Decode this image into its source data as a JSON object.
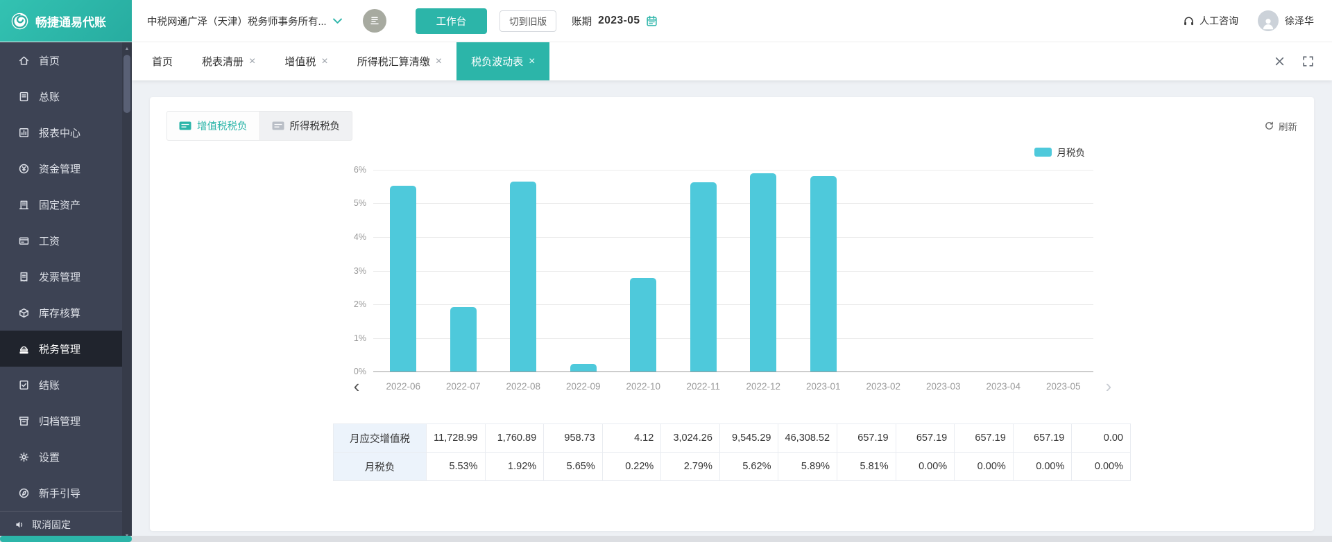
{
  "brand": {
    "name": "畅捷通易代账"
  },
  "colors": {
    "accent": "#2cb5a9",
    "bar": "#4ec9db",
    "sidebar": "#3d4354",
    "sidebar_active": "#20242d"
  },
  "topbar": {
    "company_selector": "中税网通广泽（天津）税务师事务所有...",
    "workbench_button": "工作台",
    "switch_old_button": "切到旧版",
    "period_label": "账期",
    "period_value": "2023-05",
    "support_label": "人工咨询",
    "user_name": "徐泽华"
  },
  "sidebar": {
    "items": [
      {
        "label": "首页",
        "icon": "home",
        "active": false
      },
      {
        "label": "总账",
        "icon": "ledger",
        "active": false
      },
      {
        "label": "报表中心",
        "icon": "report",
        "active": false
      },
      {
        "label": "资金管理",
        "icon": "funds",
        "active": false
      },
      {
        "label": "固定资产",
        "icon": "assets",
        "active": false
      },
      {
        "label": "工资",
        "icon": "salary",
        "active": false
      },
      {
        "label": "发票管理",
        "icon": "invoice",
        "active": false
      },
      {
        "label": "库存核算",
        "icon": "inventory",
        "active": false
      },
      {
        "label": "税务管理",
        "icon": "tax",
        "active": true
      },
      {
        "label": "结账",
        "icon": "closing",
        "active": false
      },
      {
        "label": "归档管理",
        "icon": "archive",
        "active": false
      },
      {
        "label": "设置",
        "icon": "settings",
        "active": false
      },
      {
        "label": "新手引导",
        "icon": "guide",
        "active": false
      }
    ],
    "unpin_label": "取消固定"
  },
  "tabs": [
    {
      "label": "首页",
      "closable": false,
      "active": false
    },
    {
      "label": "税表清册",
      "closable": true,
      "active": false
    },
    {
      "label": "增值税",
      "closable": true,
      "active": false
    },
    {
      "label": "所得税汇算清缴",
      "closable": true,
      "active": false
    },
    {
      "label": "税负波动表",
      "closable": true,
      "active": true
    }
  ],
  "panel": {
    "toggle_tabs": [
      {
        "label": "增值税税负",
        "active": true
      },
      {
        "label": "所得税税负",
        "active": false
      }
    ],
    "refresh_label": "刷新"
  },
  "chart_data": {
    "type": "bar",
    "title": "",
    "categories": [
      "2022-06",
      "2022-07",
      "2022-08",
      "2022-09",
      "2022-10",
      "2022-11",
      "2022-12",
      "2023-01",
      "2023-02",
      "2023-03",
      "2023-04",
      "2023-05"
    ],
    "series": [
      {
        "name": "月税负",
        "values": [
          5.53,
          1.92,
          5.65,
          0.22,
          2.79,
          5.62,
          5.89,
          5.81,
          0.0,
          0.0,
          0.0,
          0.0
        ]
      }
    ],
    "y_ticks": [
      "0%",
      "1%",
      "2%",
      "3%",
      "4%",
      "5%",
      "6%"
    ],
    "ylim": [
      0,
      6
    ],
    "unit": "%",
    "legend": [
      "月税负"
    ],
    "legend_position": "top-right",
    "grid": true,
    "bar_color": "#4ec9db"
  },
  "table": {
    "rows": [
      {
        "header": "月应交增值税",
        "values": [
          "11,728.99",
          "1,760.89",
          "958.73",
          "4.12",
          "3,024.26",
          "9,545.29",
          "46,308.52",
          "657.19",
          "657.19",
          "657.19",
          "657.19",
          "0.00"
        ]
      },
      {
        "header": "月税负",
        "values": [
          "5.53%",
          "1.92%",
          "5.65%",
          "0.22%",
          "2.79%",
          "5.62%",
          "5.89%",
          "5.81%",
          "0.00%",
          "0.00%",
          "0.00%",
          "0.00%"
        ]
      }
    ]
  }
}
